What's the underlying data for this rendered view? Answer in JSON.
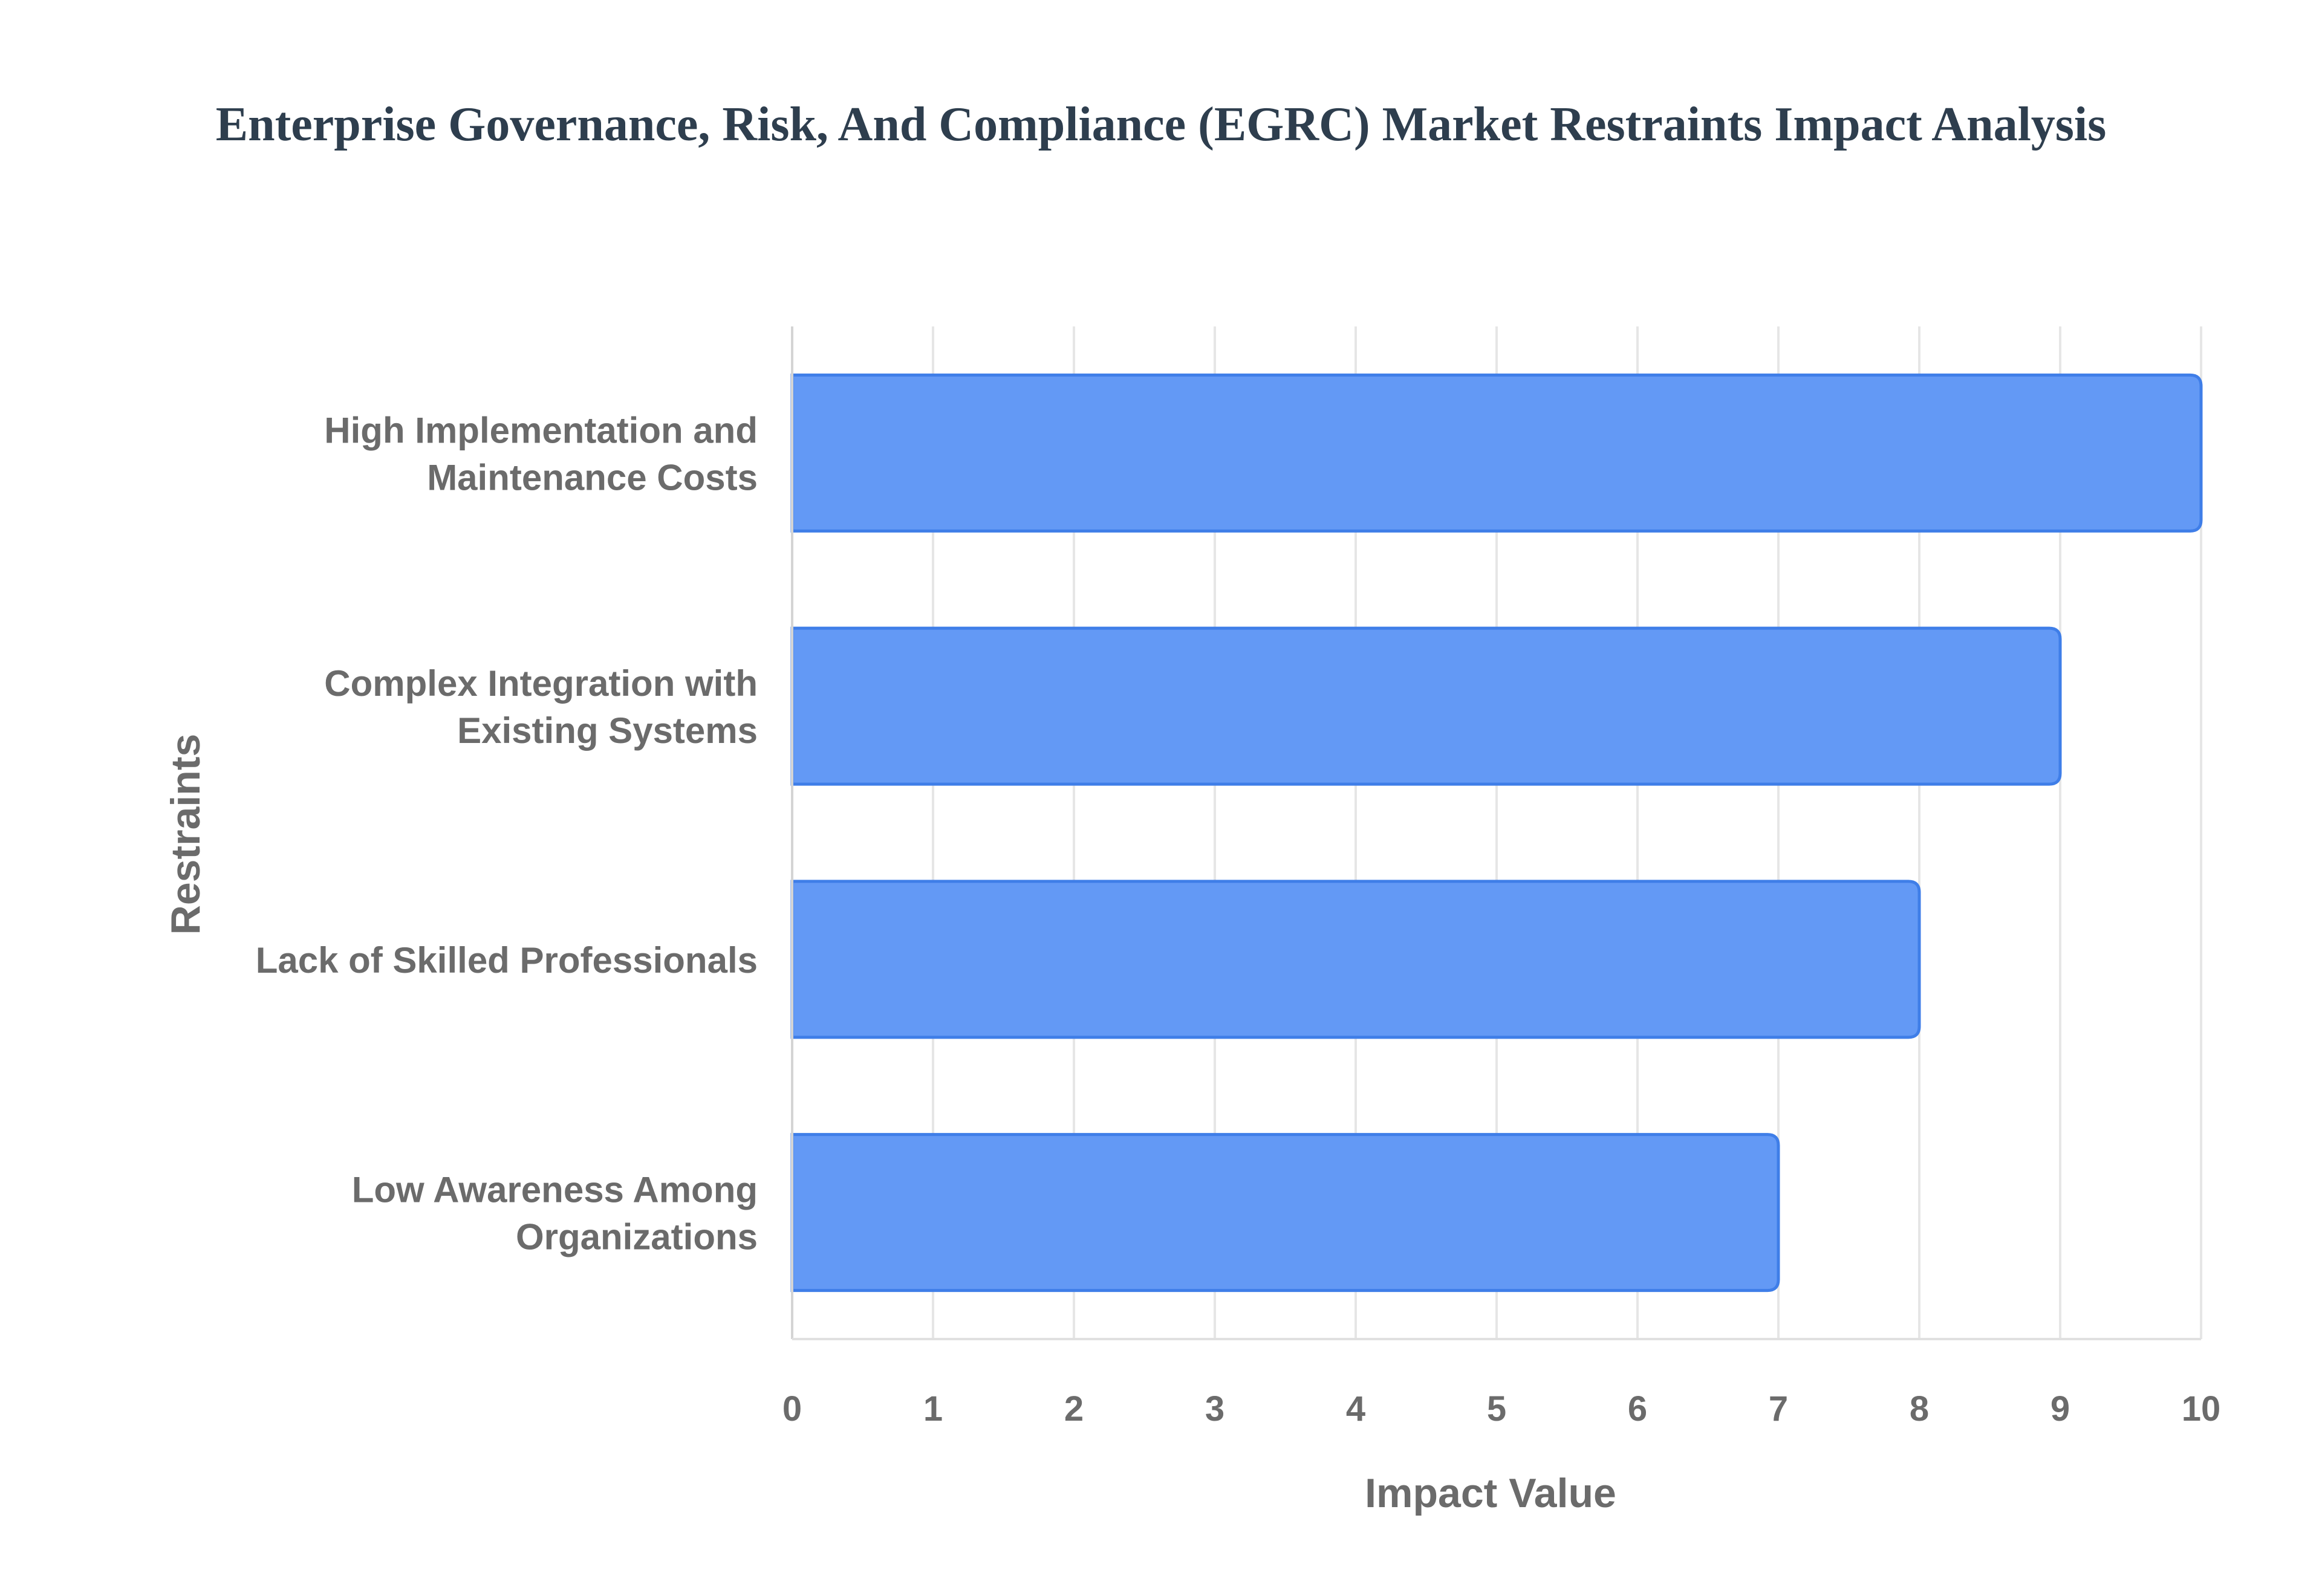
{
  "chart_data": {
    "type": "bar",
    "orientation": "horizontal",
    "title": "Enterprise Governance, Risk, And Compliance (EGRC) Market Restraints Impact Analysis",
    "xlabel": "Impact Value",
    "ylabel": "Restraints",
    "categories": [
      [
        "High Implementation and",
        "Maintenance Costs"
      ],
      [
        "Complex Integration with",
        "Existing Systems"
      ],
      [
        "Lack of Skilled Professionals"
      ],
      [
        "Low Awareness Among",
        "Organizations"
      ]
    ],
    "values": [
      10,
      9,
      8,
      7
    ],
    "xlim": [
      0,
      10
    ],
    "xticks": [
      "0",
      "1",
      "2",
      "3",
      "4",
      "5",
      "6",
      "7",
      "8",
      "9",
      "10"
    ],
    "grid": true,
    "legend": "none",
    "colors": {
      "bar_fill": "#6399f5",
      "bar_stroke": "#3f7ee8",
      "grid": "#e6e6e6",
      "text": "#6b6b6b",
      "title": "#2e3e4e"
    }
  }
}
